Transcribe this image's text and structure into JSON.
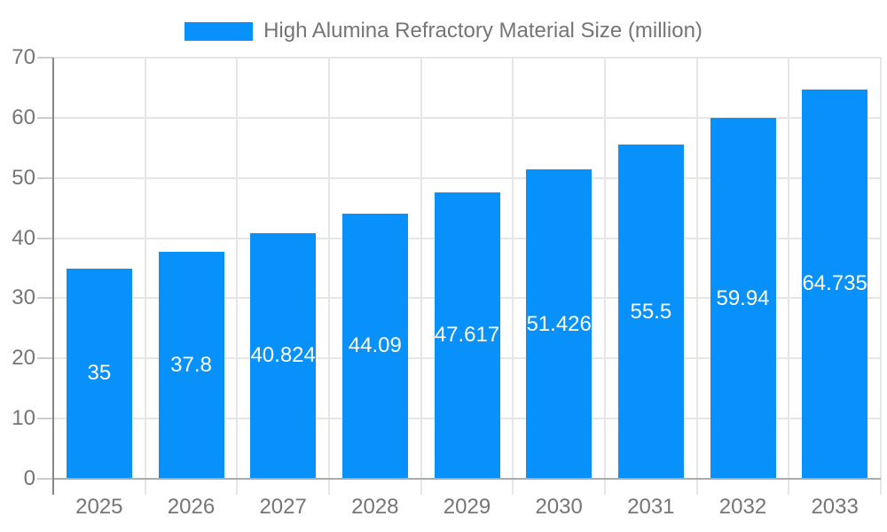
{
  "legend": {
    "label": "High Alumina Refractory Material Size (million)"
  },
  "chart_data": {
    "type": "bar",
    "title": "High Alumina Refractory Material Size (million)",
    "categories": [
      "2025",
      "2026",
      "2027",
      "2028",
      "2029",
      "2030",
      "2031",
      "2032",
      "2033"
    ],
    "values": [
      35,
      37.8,
      40.824,
      44.09,
      47.617,
      51.426,
      55.5,
      59.94,
      64.735
    ],
    "value_labels": [
      "35",
      "37.8",
      "40.824",
      "44.09",
      "47.617",
      "51.426",
      "55.5",
      "59.94",
      "64.735"
    ],
    "xlabel": "",
    "ylabel": "",
    "ylim": [
      0,
      70
    ],
    "ytick_interval": 10,
    "ytick_labels": [
      "0",
      "10",
      "20",
      "30",
      "40",
      "50",
      "60",
      "70"
    ],
    "grid": true,
    "legend_position": "top",
    "series_name": "High Alumina Refractory Material Size (million)",
    "colors": {
      "bar": "#0991fb",
      "value_label": "#ffffff",
      "axis_text": "#757575",
      "gridline": "#e6e6e6",
      "y_axis_line": "#878787",
      "baseline": "#ababab",
      "tick": "#cccccc",
      "background": "#ffffff"
    }
  }
}
